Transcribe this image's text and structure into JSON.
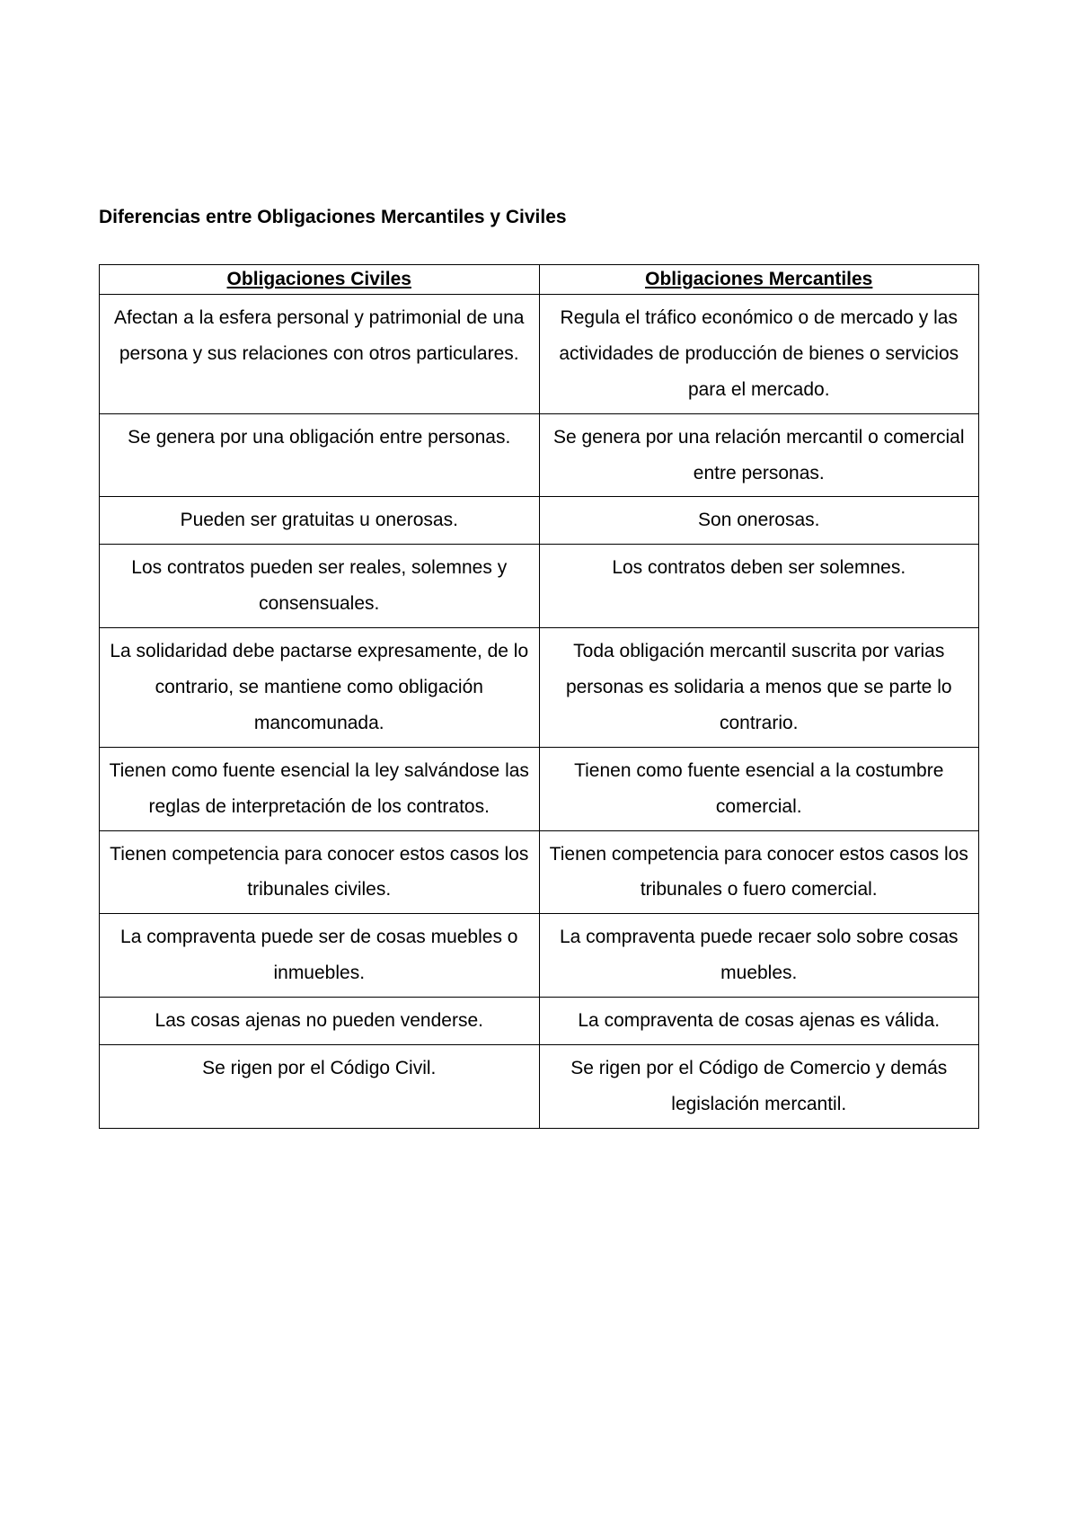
{
  "title": "Diferencias entre Obligaciones Mercantiles y Civiles",
  "table": {
    "columns": [
      "Obligaciones Civiles",
      "Obligaciones Mercantiles"
    ],
    "rows": [
      [
        "Afectan a la esfera personal y patrimonial de una persona y sus relaciones con otros particulares.",
        "Regula el tráfico económico o de mercado y las actividades de producción de bienes o servicios para el mercado."
      ],
      [
        "Se genera por una obligación entre personas.",
        "Se genera por una relación mercantil o comercial entre personas."
      ],
      [
        "Pueden ser gratuitas u onerosas.",
        "Son onerosas."
      ],
      [
        "Los contratos pueden ser reales, solemnes y consensuales.",
        "Los contratos deben ser solemnes."
      ],
      [
        "La solidaridad debe pactarse expresamente, de lo contrario, se mantiene como obligación mancomunada.",
        "Toda obligación mercantil suscrita por varias personas es solidaria a menos que se parte lo contrario."
      ],
      [
        "Tienen como fuente esencial la ley salvándose las reglas de interpretación de los contratos.",
        "Tienen como fuente esencial a la costumbre comercial."
      ],
      [
        "Tienen competencia para conocer estos casos los tribunales civiles.",
        "Tienen competencia para conocer estos casos los tribunales o fuero comercial."
      ],
      [
        "La compraventa puede ser de cosas muebles o inmuebles.",
        "La compraventa puede recaer solo sobre cosas muebles."
      ],
      [
        "Las cosas ajenas no pueden venderse.",
        "La compraventa de cosas ajenas es válida."
      ],
      [
        "Se rigen por el Código Civil.",
        "Se rigen por el Código de Comercio y demás legislación mercantil."
      ]
    ]
  }
}
